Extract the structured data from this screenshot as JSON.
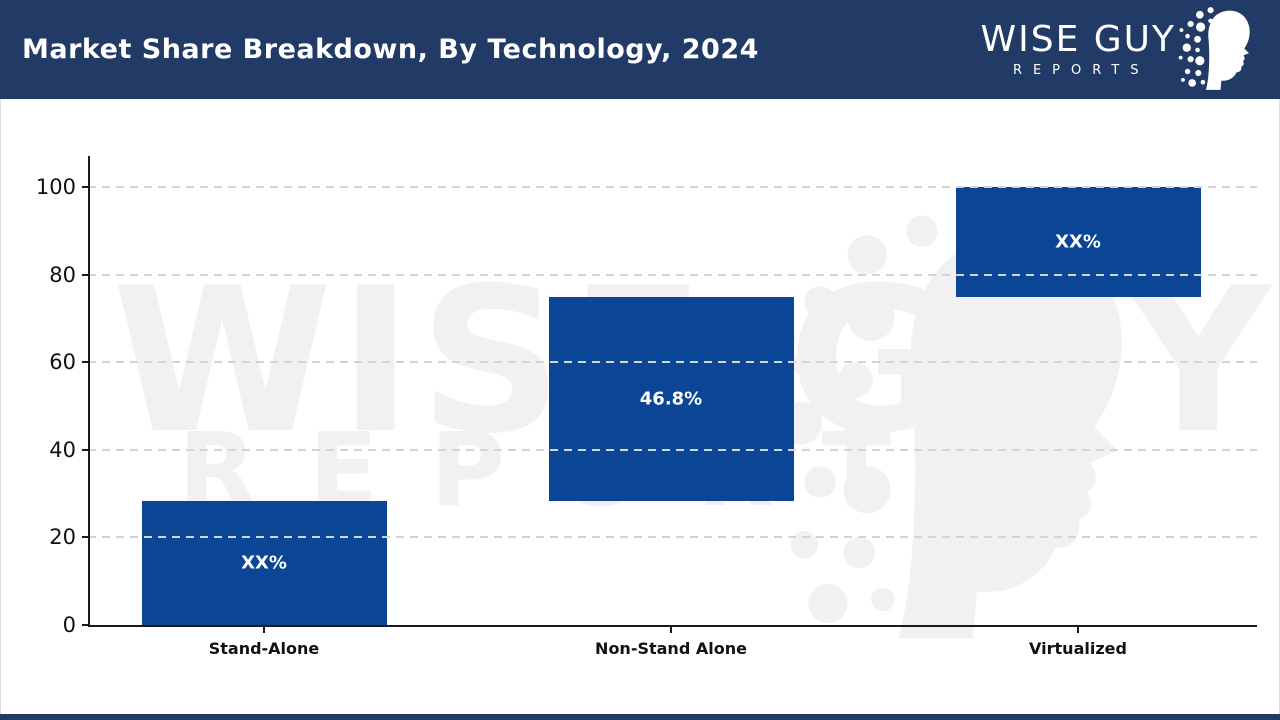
{
  "header": {
    "title": "Market Share Breakdown, By Technology, 2024",
    "logo": {
      "brand_line1": "WISE GUY",
      "brand_line2": "REPORTS"
    }
  },
  "watermark": {
    "line1": "WISE GUY",
    "line2": "REPORTS"
  },
  "chart_data": {
    "type": "bar",
    "subtype": "floating-segment-breakdown",
    "title": "Market Share Breakdown, By Technology, 2024",
    "categories": [
      "Stand-Alone",
      "Non-Stand Alone",
      "Virtualized"
    ],
    "segments": [
      {
        "category": "Stand-Alone",
        "from": 0,
        "to": 28.2,
        "label": "XX%"
      },
      {
        "category": "Non-Stand Alone",
        "from": 28.2,
        "to": 75,
        "label": "46.8%"
      },
      {
        "category": "Virtualized",
        "from": 75,
        "to": 100,
        "label": "XX%"
      }
    ],
    "y_ticks": [
      0,
      20,
      40,
      60,
      80,
      100
    ],
    "ylim": [
      0,
      107
    ],
    "xlabel": "",
    "ylabel": "",
    "grid": "horizontal-dashed",
    "legend": "none"
  },
  "colors": {
    "header_bg": "#213a66",
    "footer_bg": "#213a66",
    "bar": "#0a4596",
    "bar_label": "#ffffff",
    "grid": "#d4d4d4",
    "axis": "#1a1a1a",
    "tick_text": "#111111",
    "watermark": "#f1f1f4",
    "title_text": "#ffffff"
  }
}
